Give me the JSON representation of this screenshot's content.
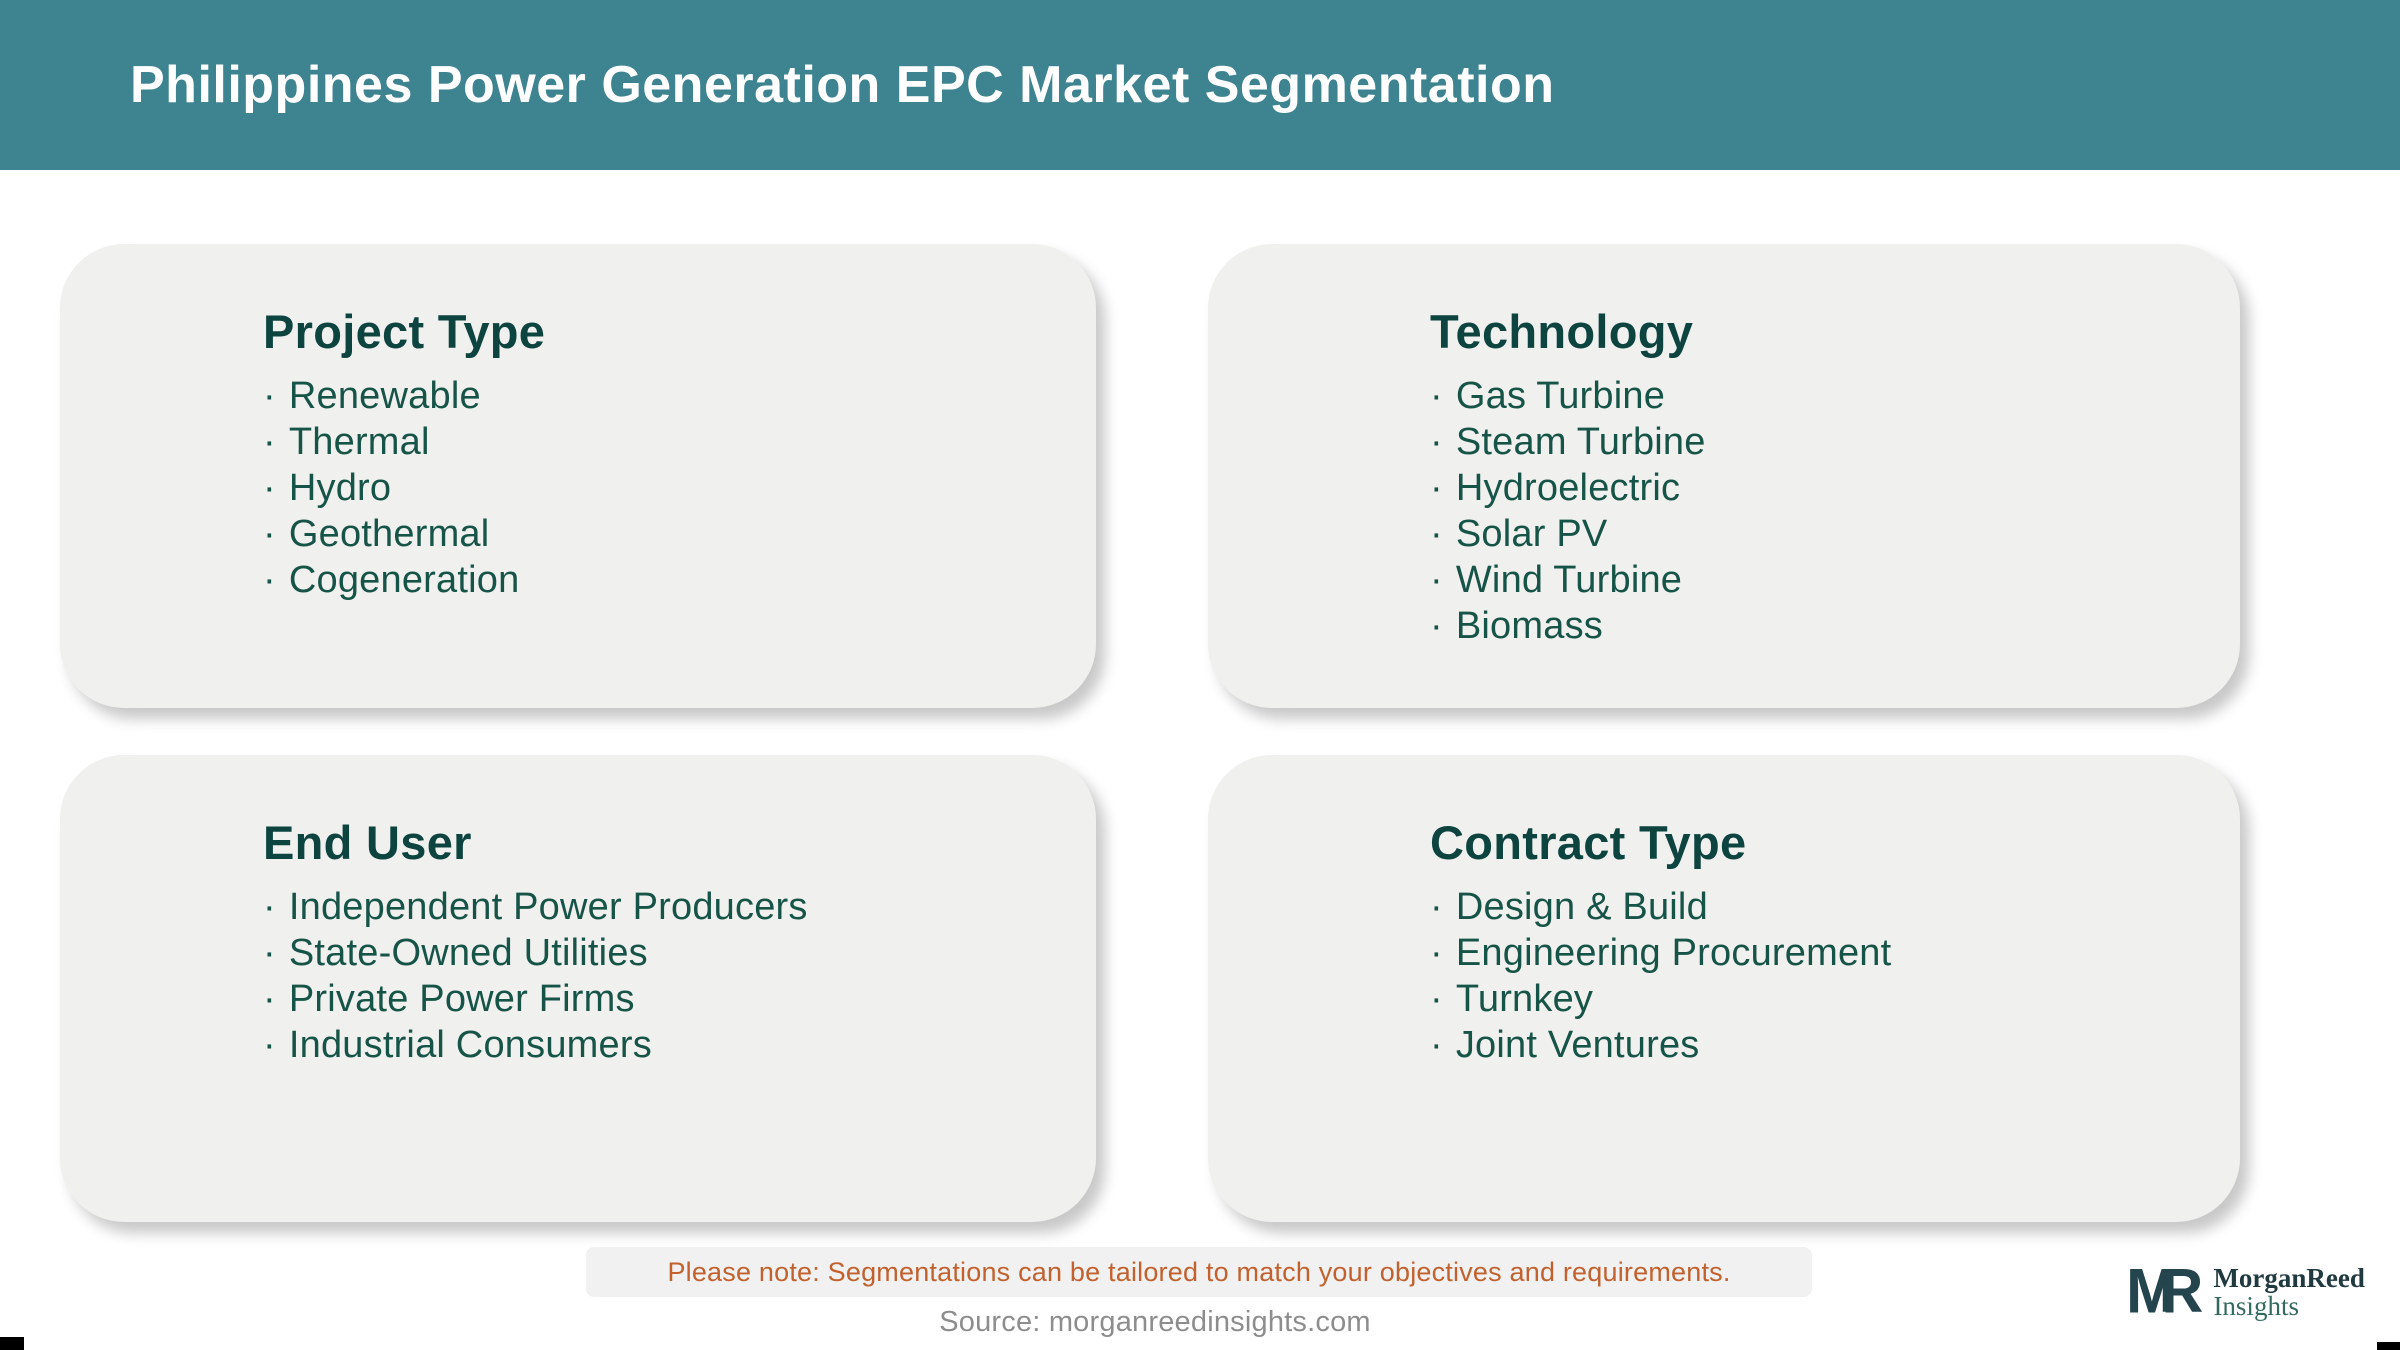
{
  "header": {
    "title": "Philippines Power Generation EPC Market Segmentation"
  },
  "bullet": "·",
  "cards": [
    {
      "title": "Project Type",
      "items": [
        "Renewable",
        "Thermal",
        "Hydro",
        "Geothermal",
        "Cogeneration"
      ]
    },
    {
      "title": "Technology",
      "items": [
        "Gas Turbine",
        "Steam Turbine",
        "Hydroelectric",
        "Solar PV",
        "Wind Turbine",
        "Biomass"
      ]
    },
    {
      "title": "End User",
      "items": [
        "Independent Power Producers",
        "State-Owned Utilities",
        "Private Power Firms",
        "Industrial Consumers"
      ]
    },
    {
      "title": "Contract Type",
      "items": [
        "Design & Build",
        "Engineering Procurement",
        "Turnkey",
        "Joint Ventures"
      ]
    }
  ],
  "note": {
    "text": "Please note: Segmentations can be tailored to match your objectives and requirements."
  },
  "source": {
    "text": "Source: morganreedinsights.com"
  },
  "logo": {
    "monogram_m": "M",
    "monogram_r": "R",
    "name_part1": "Morgan",
    "name_part2": "Reed",
    "subtitle": "Insights"
  },
  "colors": {
    "header_bg": "#3d8490",
    "header_text": "#ffffff",
    "card_bg": "#f0f0ee",
    "card_heading": "#0d4440",
    "card_item": "#175448",
    "note_text": "#c2612e",
    "note_bg": "#f1f1f1",
    "source_text": "#8d8d8d",
    "logo_dark": "#24454e",
    "logo_teal": "#336a5f"
  }
}
